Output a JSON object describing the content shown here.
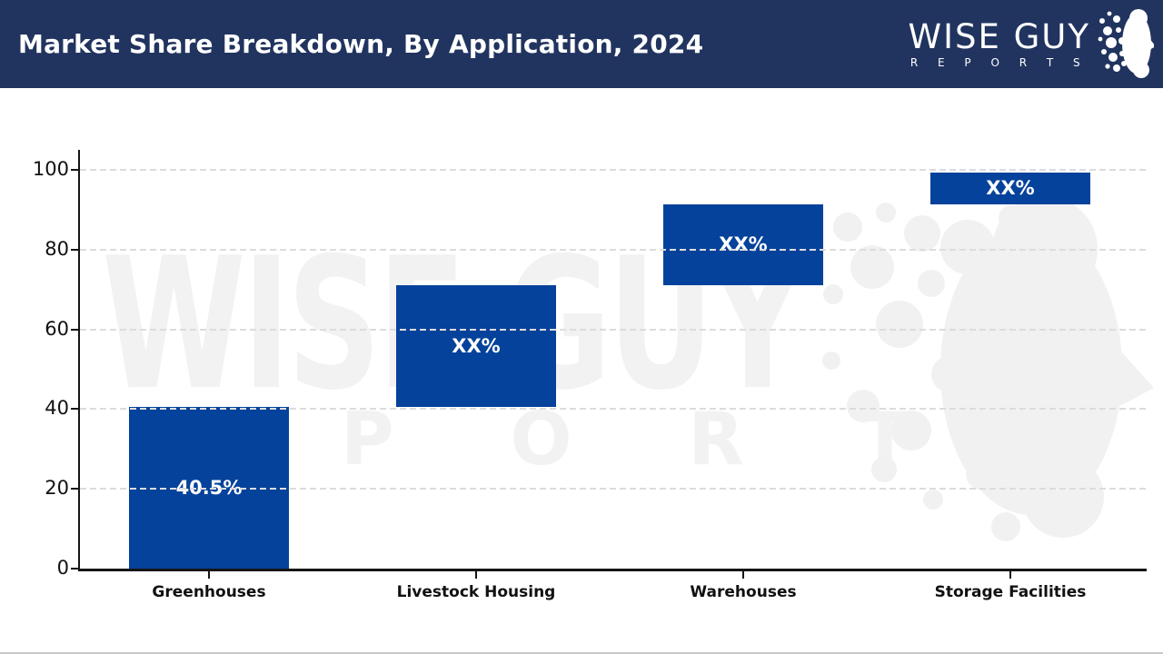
{
  "header": {
    "title": "Market Share Breakdown, By Application, 2024",
    "logo": {
      "line1": "WISE GUY",
      "line2": "R E P O R T S"
    }
  },
  "watermark": {
    "line1": "WISE GUY",
    "line2": "P O R T S"
  },
  "chart_data": {
    "type": "bar",
    "subtype": "waterfall",
    "title": "Market Share Breakdown, By Application, 2024",
    "categories": [
      "Greenhouses",
      "Livestock Housing",
      "Warehouses",
      "Storage Facilities"
    ],
    "series": [
      {
        "name": "Market Share",
        "segments": [
          {
            "category": "Greenhouses",
            "start": 0,
            "end": 40.5,
            "value": 40.5,
            "label": "40.5%"
          },
          {
            "category": "Livestock Housing",
            "start": 40.5,
            "end": 71.1,
            "value": null,
            "label": "XX%"
          },
          {
            "category": "Warehouses",
            "start": 71.1,
            "end": 91.4,
            "value": null,
            "label": "XX%"
          },
          {
            "category": "Storage Facilities",
            "start": 91.4,
            "end": 99.3,
            "value": null,
            "label": "XX%"
          }
        ]
      }
    ],
    "xlabel": "",
    "ylabel": "",
    "ylim": [
      0,
      105
    ],
    "yticks": [
      0,
      20,
      40,
      60,
      80,
      100
    ],
    "grid": "horizontal-dashed-over-bars",
    "legend": "none"
  },
  "colors": {
    "header_bg": "#21345F",
    "bar": "#05429B",
    "bar_label": "#FFFFFF",
    "grid": "#DCDCDC",
    "axis": "#151515",
    "tick_text": "#111111",
    "watermark": "#F2F2F3",
    "bottom_line": "#C9C9C9"
  }
}
